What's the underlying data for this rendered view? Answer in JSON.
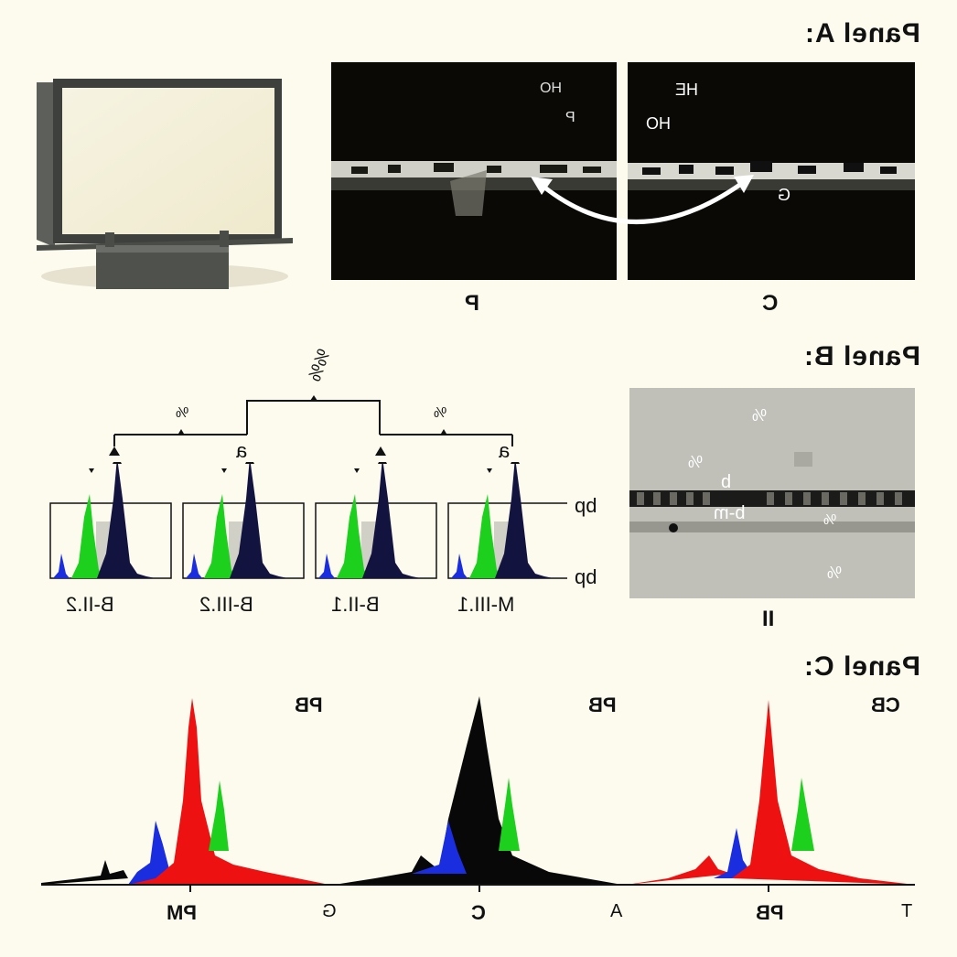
{
  "panel_a": {
    "title": "Panel A:",
    "gel_left_label": "P",
    "gel_right_label": "C",
    "left_annotations": [
      "HO",
      "P"
    ],
    "right_annotations": [
      "HE",
      "HO",
      "G"
    ]
  },
  "panel_b": {
    "title": "Panel B:",
    "tree_root_label": "%%",
    "tree_left_label": "%",
    "tree_right_label": "%",
    "samples": [
      "B-II.2",
      "B-III.2",
      "B-II.1",
      "M-III.1"
    ],
    "marks": [
      "a",
      "a"
    ],
    "row_labels": [
      "bp",
      "bp"
    ],
    "gel_label": "II",
    "gel_annotations": [
      "%",
      "%",
      "b",
      "b-m",
      "%",
      "%"
    ]
  },
  "panel_c": {
    "title": "Panel C:",
    "headers": [
      "PB",
      "PB",
      "CB"
    ],
    "axis_labels": [
      "PM",
      "G",
      "C",
      "A",
      "PB",
      "T"
    ]
  },
  "colors": {
    "background": "#fcfbee",
    "red": "#ee1111",
    "green": "#1ed01e",
    "blue": "#1a2ee0",
    "navy": "#13133f",
    "black": "#080808"
  }
}
